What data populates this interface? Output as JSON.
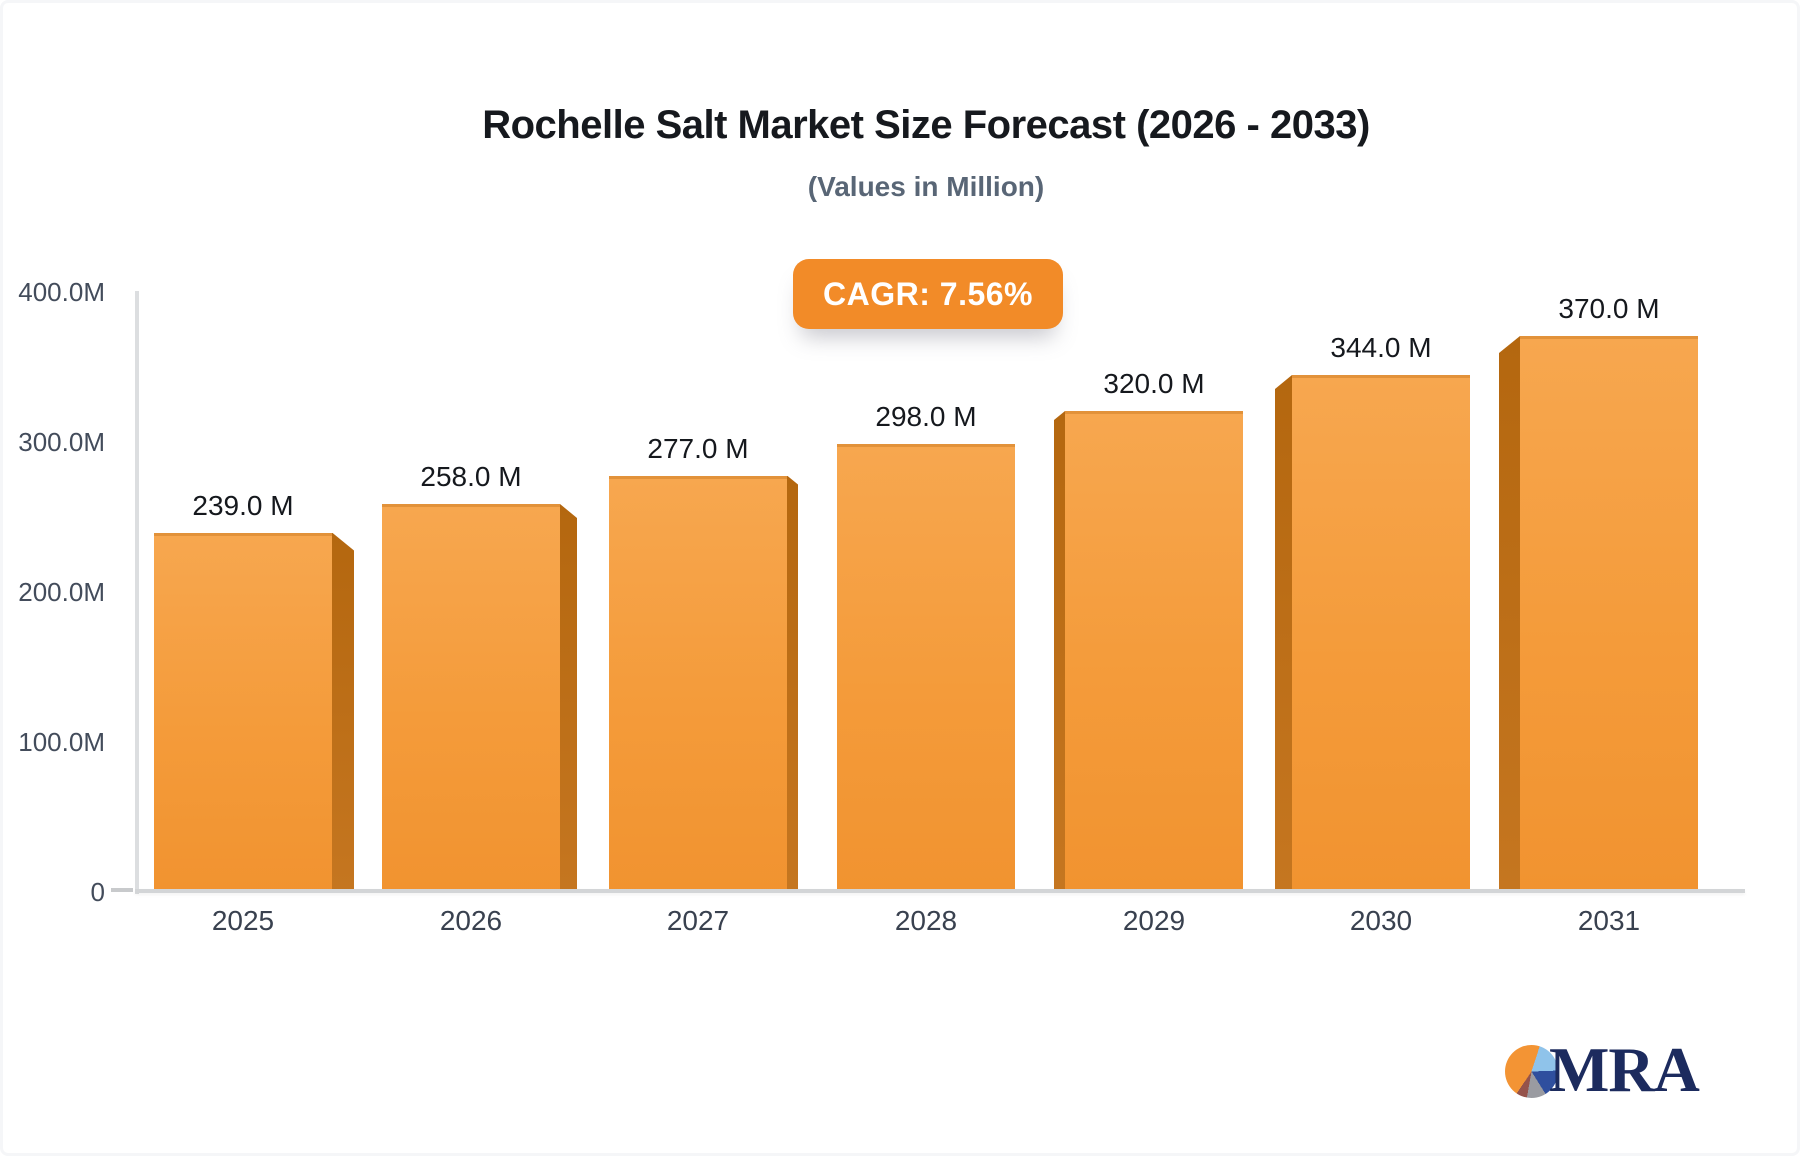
{
  "header": {
    "title": "Rochelle Salt Market Size Forecast (2026 - 2033)",
    "subtitle": "(Values in Million)"
  },
  "badge": {
    "label": "CAGR: 7.56%"
  },
  "chart_data": {
    "type": "bar",
    "title": "Rochelle Salt Market Size Forecast (2026 - 2033)",
    "subtitle": "(Values in Million)",
    "unit": "Million",
    "categories": [
      "2025",
      "2026",
      "2027",
      "2028",
      "2029",
      "2030",
      "2031"
    ],
    "values": [
      239,
      258,
      277,
      298,
      320,
      344,
      370
    ],
    "value_labels": [
      "239.0 M",
      "258.0 M",
      "277.0 M",
      "298.0 M",
      "320.0 M",
      "344.0 M",
      "370.0 M"
    ],
    "cagr_label": "CAGR: 7.56%",
    "ylim": [
      0,
      400
    ],
    "yticks": [
      {
        "label": "400.0M",
        "value": 400
      },
      {
        "label": "300.0M",
        "value": 300
      },
      {
        "label": "200.0M",
        "value": 200
      },
      {
        "label": "100.0M",
        "value": 100
      },
      {
        "label": "0",
        "value": 0
      }
    ],
    "grid": false,
    "legend": "none",
    "bar_style": "3d-perspective",
    "colors": {
      "bar_top": "#F7A74F",
      "bar_bottom": "#F19330",
      "bar_side": "#BE7019",
      "badge_bg": "#F28B28",
      "axis": "#D9DBDD",
      "value_text": "#15181D",
      "tick_text": "#434C5B",
      "title_text": "#16191E",
      "subtitle_text": "#596676"
    }
  },
  "logo": {
    "text": "MRA",
    "text_color": "#1C2B5E",
    "pie_colors": [
      "#F39434",
      "#8FC3EA",
      "#2F4F9E",
      "#9A9BA1",
      "#95534B"
    ]
  }
}
